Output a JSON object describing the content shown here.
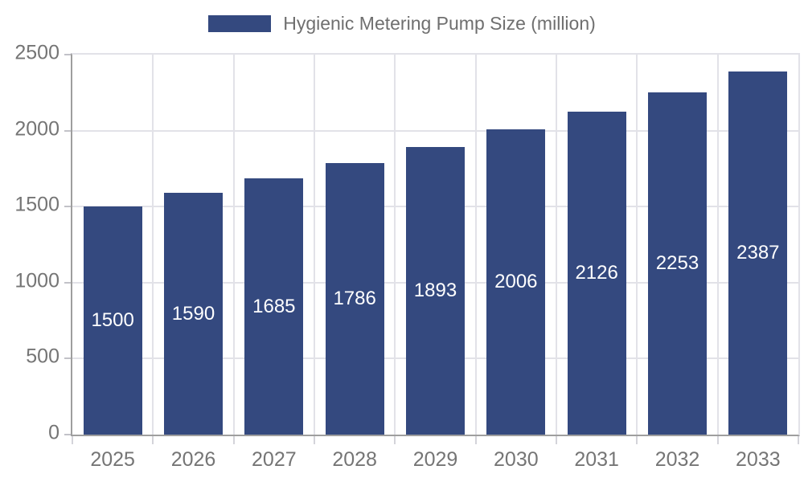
{
  "chart_data": {
    "type": "bar",
    "title": "",
    "xlabel": "",
    "ylabel": "",
    "legend": {
      "label": "Hygienic Metering Pump Size (million)",
      "position": "top"
    },
    "categories": [
      "2025",
      "2026",
      "2027",
      "2028",
      "2029",
      "2030",
      "2031",
      "2032",
      "2033"
    ],
    "series": [
      {
        "name": "Hygienic Metering Pump Size (million)",
        "values": [
          1500,
          1590,
          1685,
          1786,
          1893,
          2006,
          2126,
          2253,
          2387
        ]
      }
    ],
    "ylim": [
      0,
      2500
    ],
    "yticks": [
      0,
      500,
      1000,
      1500,
      2000,
      2500
    ],
    "grid": true,
    "colors": {
      "bar": "#34497F",
      "bar_value_label": "#ffffff",
      "axis_line": "#9e9e9e",
      "gridline": "#e2e2e8",
      "axis_text": "#757575",
      "legend_text": "#6f6f6f"
    }
  }
}
